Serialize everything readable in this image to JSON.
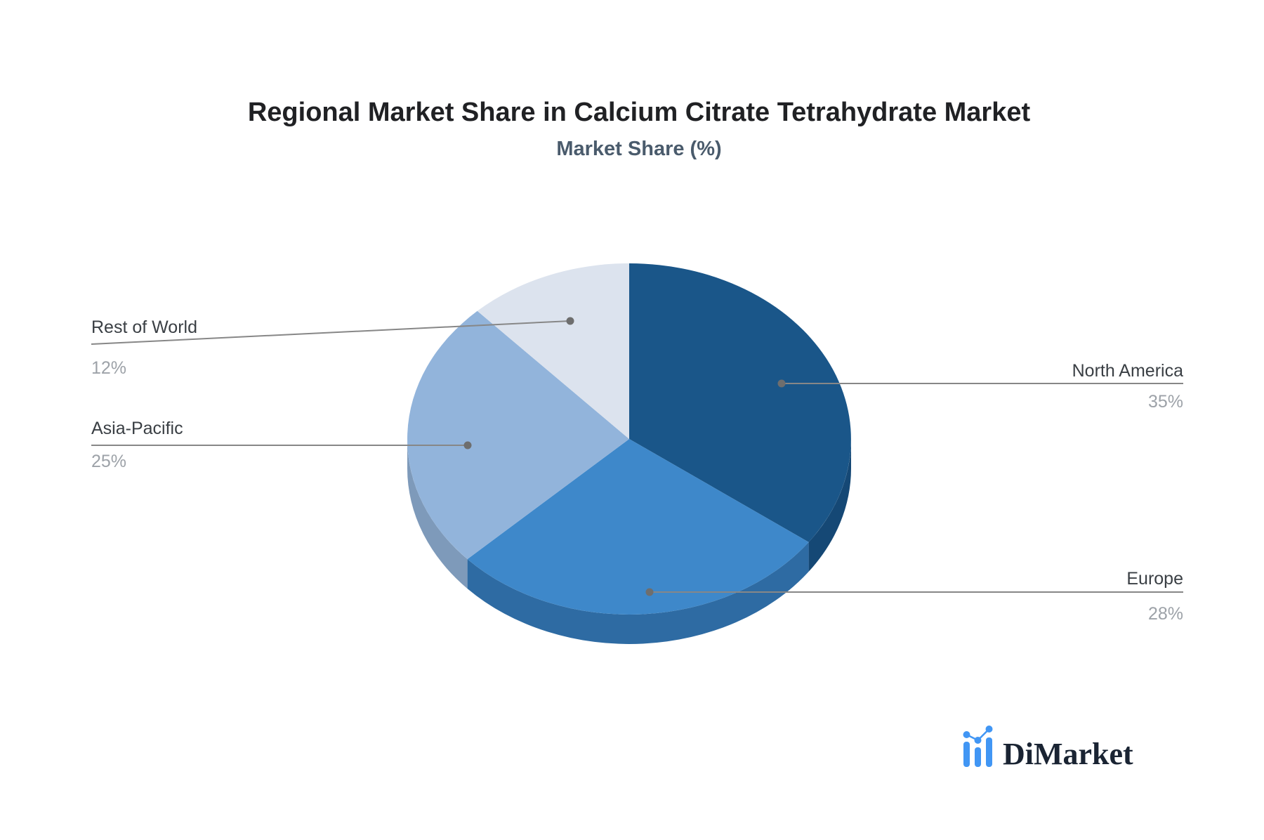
{
  "chart_data": {
    "type": "pie",
    "title": "Regional Market Share in Calcium Citrate Tetrahydrate Market",
    "subtitle": "Market Share (%)",
    "unit": "%",
    "style": "3d-pie",
    "start_angle_deg": -90,
    "direction": "clockwise",
    "legend": "none",
    "labels": "leader-lines",
    "slices": [
      {
        "name": "North America",
        "value": 35,
        "display": "35%",
        "color": "#1A5689",
        "side_color": "#154875"
      },
      {
        "name": "Europe",
        "value": 28,
        "display": "28%",
        "color": "#3E88CA",
        "side_color": "#2E6BA3"
      },
      {
        "name": "Asia-Pacific",
        "value": 25,
        "display": "25%",
        "color": "#92B4DB",
        "side_color": "#7E9ABA"
      },
      {
        "name": "Rest of World",
        "value": 12,
        "display": "12%",
        "color": "#DCE3EE",
        "side_color": "#B9C6D8"
      }
    ],
    "label_text_color": "#3A3F44",
    "percent_text_color": "#9DA2A8",
    "leader_line_color": "#878787"
  },
  "branding": {
    "logo_text": "DiMarket",
    "logo_icon": "bar-chart-icon",
    "logo_text_color": "#1A2433",
    "logo_icon_color": "#4196F4"
  }
}
